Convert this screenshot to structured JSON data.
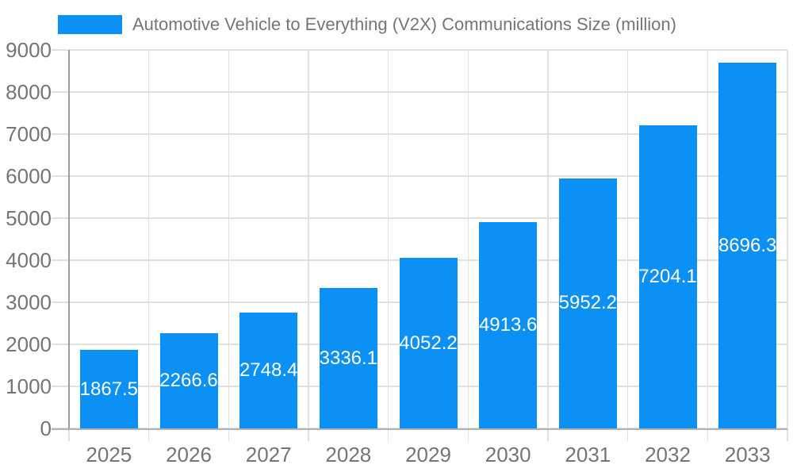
{
  "legend": {
    "label": "Automotive Vehicle to Everything (V2X) Communications Size (million)"
  },
  "chart_data": {
    "type": "bar",
    "title": "Automotive Vehicle to Everything (V2X) Communications Size (million)",
    "categories": [
      "2025",
      "2026",
      "2027",
      "2028",
      "2029",
      "2030",
      "2031",
      "2032",
      "2033"
    ],
    "values": [
      1867.5,
      2266.6,
      2748.4,
      3336.1,
      4052.2,
      4913.6,
      5952.2,
      7204.1,
      8696.3
    ],
    "value_labels": [
      "1867.5",
      "2266.6",
      "2748.4",
      "3336.1",
      "4052.2",
      "4913.6",
      "5952.2",
      "7204.1",
      "8696.3"
    ],
    "xlabel": "",
    "ylabel": "",
    "ylim": [
      0,
      9000
    ],
    "y_tick_step": 1000,
    "y_tick_labels": [
      "0",
      "1000",
      "2000",
      "3000",
      "4000",
      "5000",
      "6000",
      "7000",
      "8000",
      "9000"
    ],
    "grid": true,
    "legend_position": "top-left",
    "colors": {
      "bar": "#0b90f6",
      "value_label": "#ffffff",
      "axis_label": "#757575",
      "legend_label": "#757575",
      "gridline": "#e0e0e0",
      "y_axis_line": "#9e9e9e",
      "x_axis_line": "#b3b3b3",
      "background": "#ffffff"
    }
  }
}
